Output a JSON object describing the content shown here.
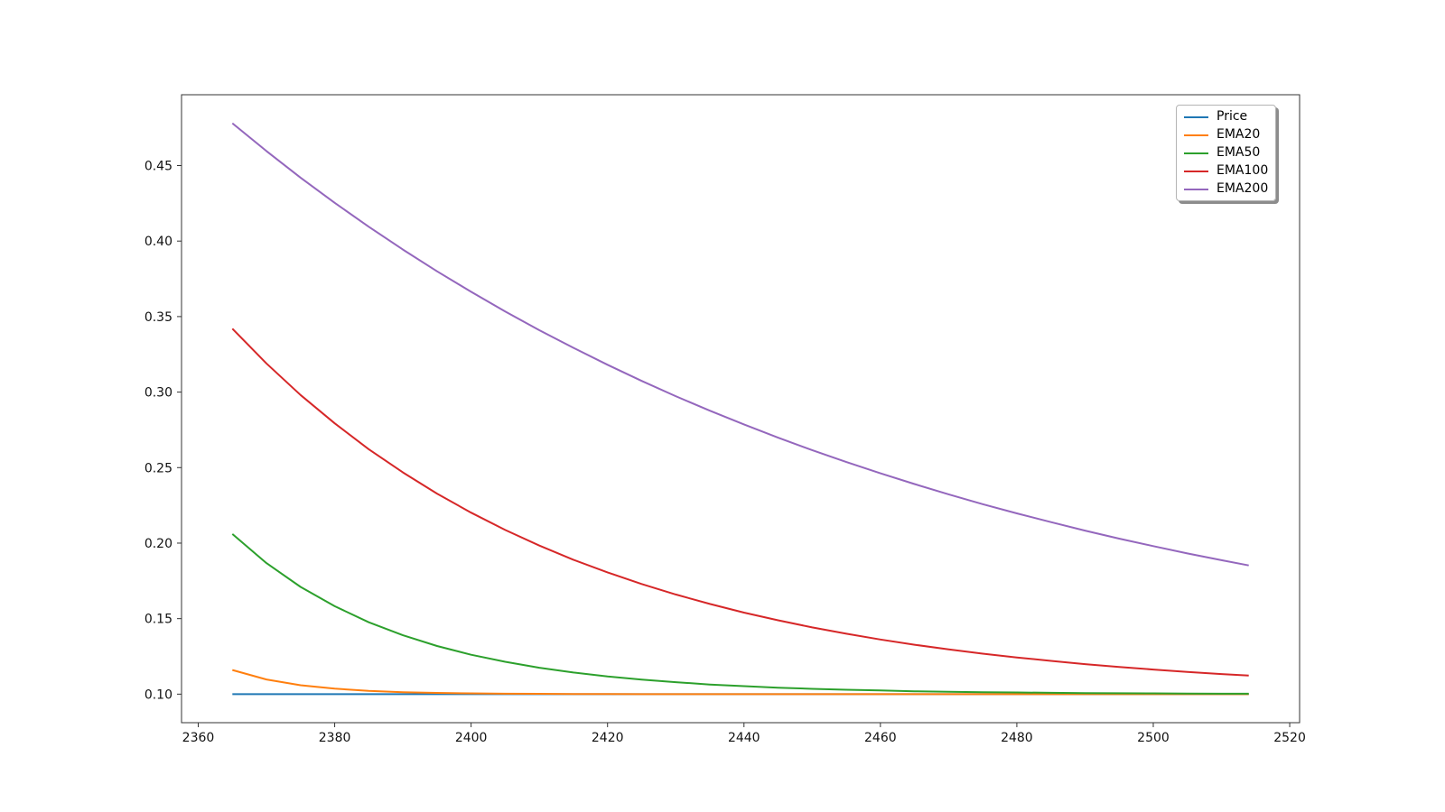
{
  "figure": {
    "background_color": "#ffffff",
    "axes_edge_color": "#333333"
  },
  "chart_data": {
    "type": "line",
    "title": "",
    "xlabel": "",
    "ylabel": "",
    "grid": false,
    "xlim": [
      2357.55,
      2521.45
    ],
    "ylim": [
      0.0811,
      0.4969
    ],
    "x_ticks": [
      2360,
      2380,
      2400,
      2420,
      2440,
      2460,
      2480,
      2500,
      2520
    ],
    "x_tick_labels": [
      "2360",
      "2380",
      "2400",
      "2420",
      "2440",
      "2460",
      "2480",
      "2500",
      "2520"
    ],
    "y_ticks": [
      0.1,
      0.15,
      0.2,
      0.25,
      0.3,
      0.35,
      0.4,
      0.45
    ],
    "y_tick_labels": [
      "0.10",
      "0.15",
      "0.20",
      "0.25",
      "0.30",
      "0.35",
      "0.40",
      "0.45"
    ],
    "legend": {
      "position": "upper right"
    },
    "x": [
      2365,
      2370,
      2375,
      2380,
      2385,
      2390,
      2395,
      2400,
      2405,
      2410,
      2415,
      2420,
      2425,
      2430,
      2435,
      2440,
      2445,
      2450,
      2455,
      2460,
      2465,
      2470,
      2475,
      2480,
      2485,
      2490,
      2495,
      2500,
      2505,
      2510,
      2514
    ],
    "series": [
      {
        "name": "Price",
        "color": "#1f77b4",
        "values": [
          0.1,
          0.1,
          0.1,
          0.1,
          0.1,
          0.1,
          0.1,
          0.1,
          0.1,
          0.1,
          0.1,
          0.1,
          0.1,
          0.1,
          0.1,
          0.1,
          0.1,
          0.1,
          0.1,
          0.1,
          0.1,
          0.1,
          0.1,
          0.1,
          0.1,
          0.1,
          0.1,
          0.1,
          0.1,
          0.1,
          0.1
        ]
      },
      {
        "name": "EMA20",
        "color": "#ff7f0e",
        "values": [
          0.116,
          0.1097,
          0.1059,
          0.1036,
          0.1022,
          0.1013,
          0.1008,
          0.1005,
          0.1003,
          0.1002,
          0.1001,
          0.1001,
          0.1,
          0.1,
          0.1,
          0.1,
          0.1,
          0.1,
          0.1,
          0.1,
          0.1,
          0.1,
          0.1,
          0.1,
          0.1,
          0.1,
          0.1,
          0.1,
          0.1,
          0.1,
          0.1
        ]
      },
      {
        "name": "EMA50",
        "color": "#2ca02c",
        "values": [
          0.206,
          0.1868,
          0.171,
          0.1582,
          0.1476,
          0.139,
          0.1319,
          0.1261,
          0.1214,
          0.1175,
          0.1143,
          0.1117,
          0.1096,
          0.1079,
          0.1064,
          0.1053,
          0.1043,
          0.1035,
          0.1029,
          0.1024,
          0.1019,
          0.1016,
          0.1013,
          0.1011,
          0.1009,
          0.1007,
          0.1006,
          0.1005,
          0.1004,
          0.1003,
          0.1003
        ]
      },
      {
        "name": "EMA100",
        "color": "#d62728",
        "values": [
          0.342,
          0.319,
          0.2981,
          0.2793,
          0.2622,
          0.2468,
          0.2328,
          0.2202,
          0.2087,
          0.1984,
          0.189,
          0.1806,
          0.1729,
          0.166,
          0.1597,
          0.154,
          0.1489,
          0.1442,
          0.14,
          0.1362,
          0.1327,
          0.1296,
          0.1268,
          0.1243,
          0.122,
          0.1199,
          0.118,
          0.1163,
          0.1147,
          0.1133,
          0.1123
        ]
      },
      {
        "name": "EMA200",
        "color": "#9467bd",
        "values": [
          0.478,
          0.4596,
          0.442,
          0.4253,
          0.4095,
          0.3944,
          0.38,
          0.3664,
          0.3534,
          0.341,
          0.3293,
          0.3181,
          0.3074,
          0.2973,
          0.2877,
          0.2786,
          0.2698,
          0.2616,
          0.2537,
          0.2462,
          0.2391,
          0.2323,
          0.2258,
          0.2197,
          0.2139,
          0.2083,
          0.203,
          0.198,
          0.1932,
          0.1887,
          0.1852
        ]
      }
    ]
  }
}
